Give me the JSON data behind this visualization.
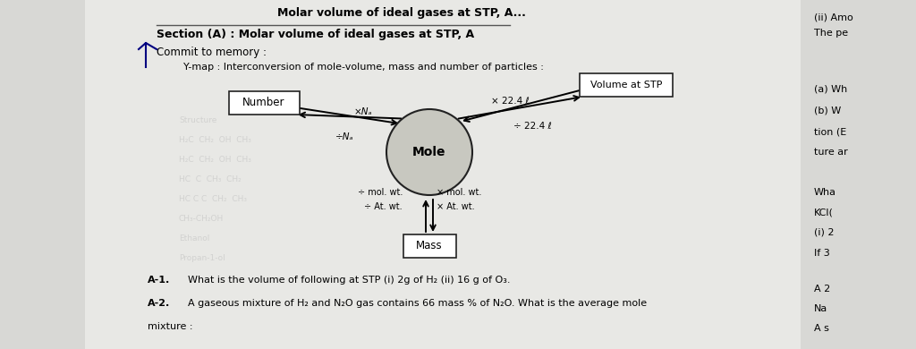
{
  "bg_color": "#d8d8d5",
  "page_color": "#e8e8e5",
  "title_line1": "Section (A) : Molar volume of ideal gases at STP, A",
  "title_line2": "Commit to memory :",
  "ymap_label": "Y-map : Interconversion of mole-volume, mass and number of particles :",
  "center_label": "Mole",
  "node_number": "Number",
  "node_mass": "Mass",
  "node_volume": "Volume at STP",
  "lbl_x_Na": "×Nₐ",
  "lbl_div_Na": "÷Nₐ",
  "lbl_x_224": "× 22.4 ℓ",
  "lbl_div_224": "÷ 22.4 ℓ",
  "lbl_div_mw": "÷ mol. wt.",
  "lbl_div_aw": "÷ At. wt.",
  "lbl_x_mw": "× mol. wt.",
  "lbl_x_aw": "× At. wt.",
  "q_a1_label": "A-1.",
  "q_a1_text": "What is the volume of following at STP (i) 2g of H₂ (ii) 16 g of O₃.",
  "q_a2_label": "A-2.",
  "q_a2_text": "A gaseous mixture of H₂ and N₂O gas contains 66 mass % of N₂O. What is the average mole",
  "q_a2_cont": "mixture :",
  "right_col": [
    "(ii) Amo",
    "The pe",
    "",
    "(a) Wh",
    "(b) W",
    "tion (E",
    "ture ar",
    "",
    "Wha",
    "KCl(",
    "(i) 2",
    "If 3",
    "",
    "A 2",
    "Na",
    "A s"
  ]
}
